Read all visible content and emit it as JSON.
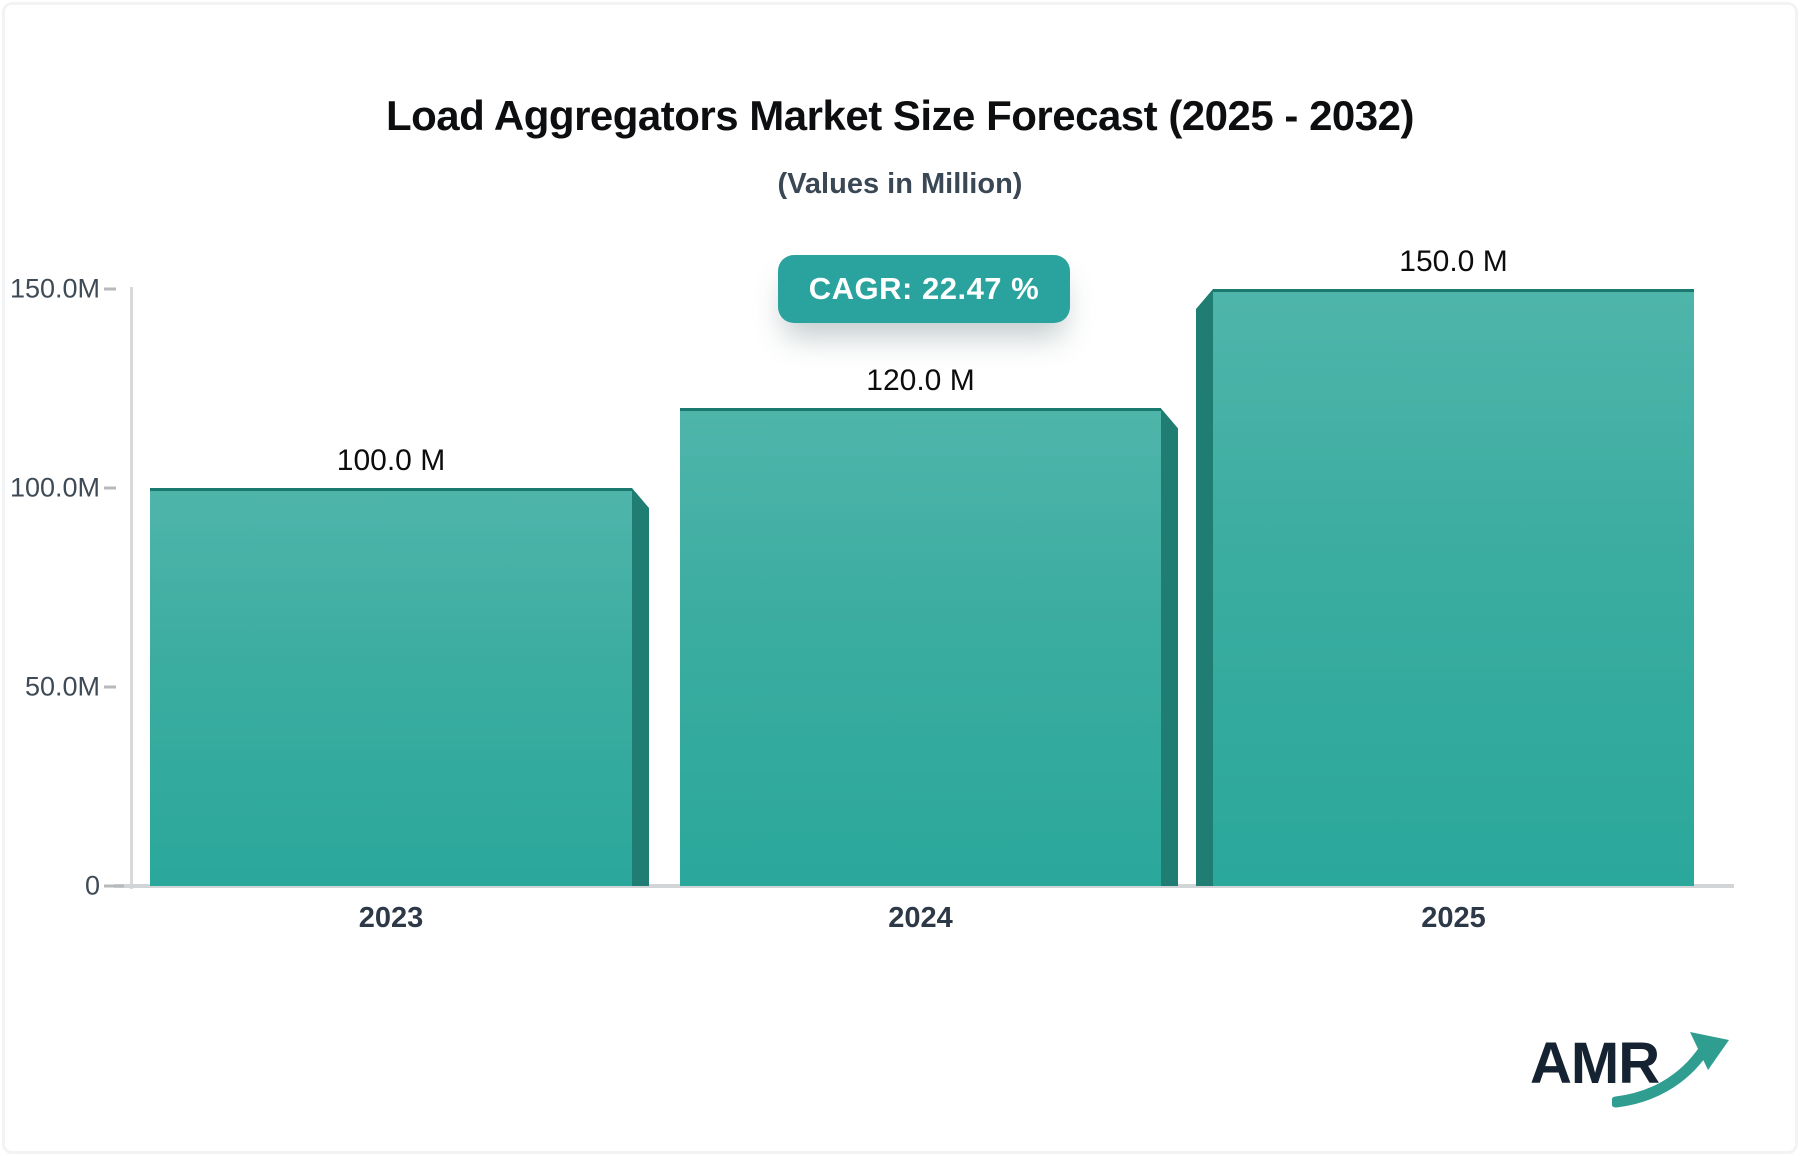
{
  "header": {
    "title": "Load Aggregators Market Size Forecast (2025 - 2032)",
    "subtitle": "(Values in Million)"
  },
  "badge": {
    "label": "CAGR: 22.47 %"
  },
  "chart_data": {
    "type": "bar",
    "title": "Load Aggregators Market Size Forecast (2025 - 2032)",
    "subtitle": "(Values in Million)",
    "unit": "Million",
    "categories": [
      "2023",
      "2024",
      "2025"
    ],
    "values": [
      100.0,
      120.0,
      150.0
    ],
    "value_labels": [
      "100.0 M",
      "120.0 M",
      "150.0 M"
    ],
    "cagr_percent": 22.47,
    "ylim": [
      0,
      150
    ],
    "grid": false,
    "legend_position": "none",
    "y_axis": {
      "ticks": [
        {
          "label": "150.0M",
          "value": 150
        },
        {
          "label": "100.0M",
          "value": 100
        },
        {
          "label": "50.0M",
          "value": 50
        },
        {
          "label": "0",
          "value": 0
        }
      ]
    },
    "colors": {
      "bar_top": "#4fb5ab",
      "bar_bottom": "#2aa89b",
      "bar_edge": "#1a7a70",
      "bar_side_3d": "#1f7d73",
      "badge_bg": "#2aa39e",
      "axis": "#d2d5d7"
    }
  },
  "logo": {
    "text": "AMR",
    "icon": "growth-arrow-icon",
    "arrow_color": "#2f9e91"
  }
}
